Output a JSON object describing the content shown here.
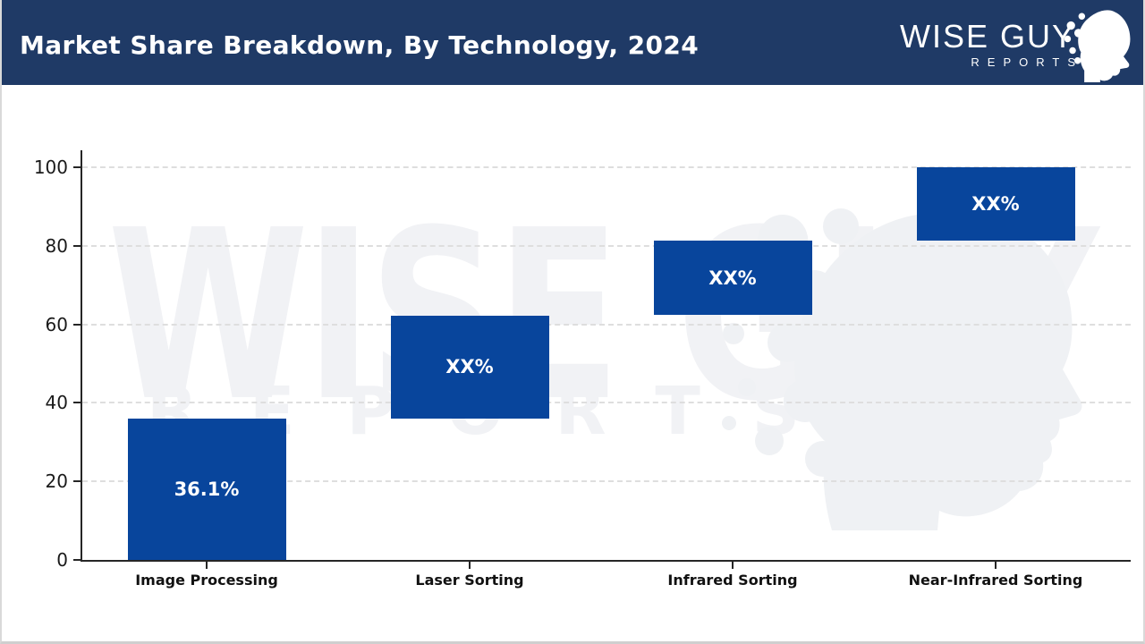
{
  "page": {
    "background": "#ffffff",
    "edge_border_color": "#d9d9d9"
  },
  "header": {
    "background": "#1f3a66",
    "title": "Market Share Breakdown, By Technology, 2024",
    "logo": {
      "name": "WISE GUY",
      "tagline": "REPORTS"
    }
  },
  "watermark": {
    "line1": "WISE GUY",
    "line2": "REPORTS"
  },
  "chart_data": {
    "type": "bar",
    "variant": "floating-segment-breakdown",
    "title": "Market Share Breakdown, By Technology, 2024",
    "categories": [
      "Image Processing",
      "Laser Sorting",
      "Infrared Sorting",
      "Near-Infrared Sorting"
    ],
    "segments": [
      {
        "category": "Image Processing",
        "from": 0,
        "to": 36.1,
        "label": "36.1%"
      },
      {
        "category": "Laser Sorting",
        "from": 36.1,
        "to": 62.3,
        "label": "XX%"
      },
      {
        "category": "Infrared Sorting",
        "from": 62.3,
        "to": 81.4,
        "label": "XX%"
      },
      {
        "category": "Near-Infrared Sorting",
        "from": 81.4,
        "to": 100,
        "label": "XX%"
      }
    ],
    "ylim": [
      0,
      100
    ],
    "yticks": [
      "0",
      "20",
      "40",
      "60",
      "80",
      "100"
    ],
    "xlabel": "",
    "ylabel": "",
    "grid": "horizontal-dashed",
    "legend": "none",
    "bar_color": "#08459c",
    "bar_label_color": "#ffffff",
    "axis_color": "#262626",
    "tick_label_color": "#1a1a1a",
    "gridline_color": "#dedede",
    "watermark_color": "#f1f2f5"
  }
}
